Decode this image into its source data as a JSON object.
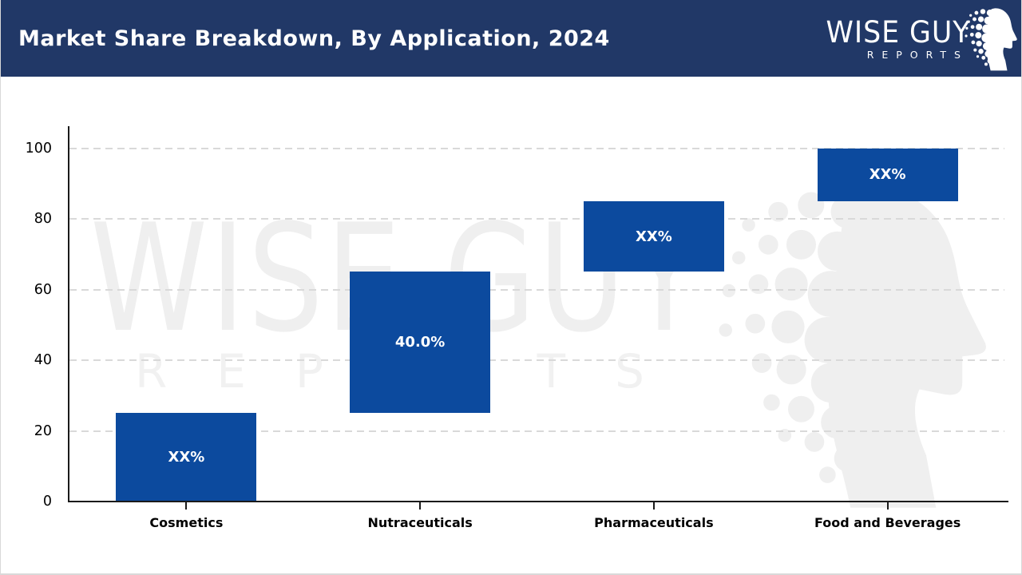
{
  "header": {
    "title": "Market Share Breakdown, By Application, 2024",
    "bg_color": "#213867",
    "logo": {
      "name": "WISE GUY",
      "sub": "REPORTS"
    }
  },
  "watermark": {
    "line1": "WISE GUY",
    "line2": "REPORTS"
  },
  "chart_data": {
    "type": "bar",
    "variant": "waterfall-floating-bars",
    "title": "Market Share Breakdown, By Application, 2024",
    "categories": [
      "Cosmetics",
      "Nutraceuticals",
      "Pharmaceuticals",
      "Food and Beverages"
    ],
    "bars": [
      {
        "category": "Cosmetics",
        "start": 0,
        "end": 25,
        "value_label": "XX%"
      },
      {
        "category": "Nutraceuticals",
        "start": 25,
        "end": 65,
        "value_label": "40.0%"
      },
      {
        "category": "Pharmaceuticals",
        "start": 65,
        "end": 85,
        "value_label": "XX%"
      },
      {
        "category": "Food and Beverages",
        "start": 85,
        "end": 100,
        "value_label": "XX%"
      }
    ],
    "yticks": [
      0,
      20,
      40,
      60,
      80,
      100
    ],
    "ylim": [
      0,
      105.8
    ],
    "xlabel": "",
    "ylabel": "",
    "grid": "horizontal-dashed",
    "legend": null,
    "bar_color": "#0c4a9e",
    "value_label_color": "#ffffff",
    "grid_color": "#d9d9d9",
    "axis_color": "#1a1a1a",
    "tick_label_color": "#000000",
    "watermark_color": "#efefef"
  }
}
